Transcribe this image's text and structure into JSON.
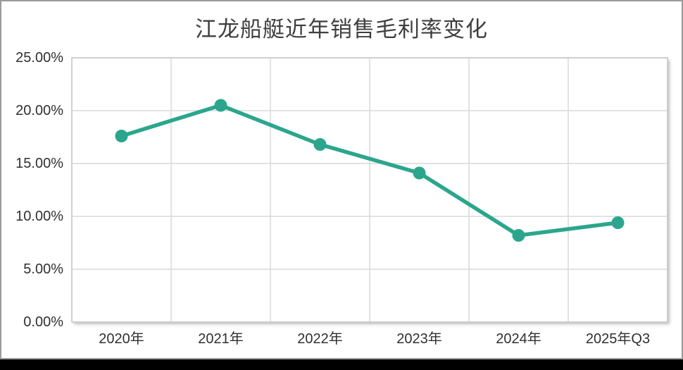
{
  "window": {
    "background": "#ffffff",
    "border_color": "#9a9a9a",
    "letterbox_color": "#000000"
  },
  "chart_data": {
    "type": "line",
    "title": "江龙船艇近年销售毛利率变化",
    "categories": [
      "2020年",
      "2021年",
      "2022年",
      "2023年",
      "2024年",
      "2025年Q3"
    ],
    "values": [
      17.6,
      20.5,
      16.8,
      14.1,
      8.2,
      9.4
    ],
    "value_unit": "percent",
    "xlabel": "",
    "ylabel": "",
    "ylim": [
      0,
      25
    ],
    "y_tick_labels": [
      "25.00%",
      "20.00%",
      "15.00%",
      "10.00%",
      "5.00%",
      "0.00%"
    ],
    "grid": true,
    "legend_position": "none",
    "colors": {
      "line": "#2BA68D",
      "marker": "#2BA68D",
      "grid": "#D9D9D9",
      "plot_border": "#C6C6C6",
      "title_text": "#3F3F3F",
      "axis_text": "#303030"
    }
  }
}
